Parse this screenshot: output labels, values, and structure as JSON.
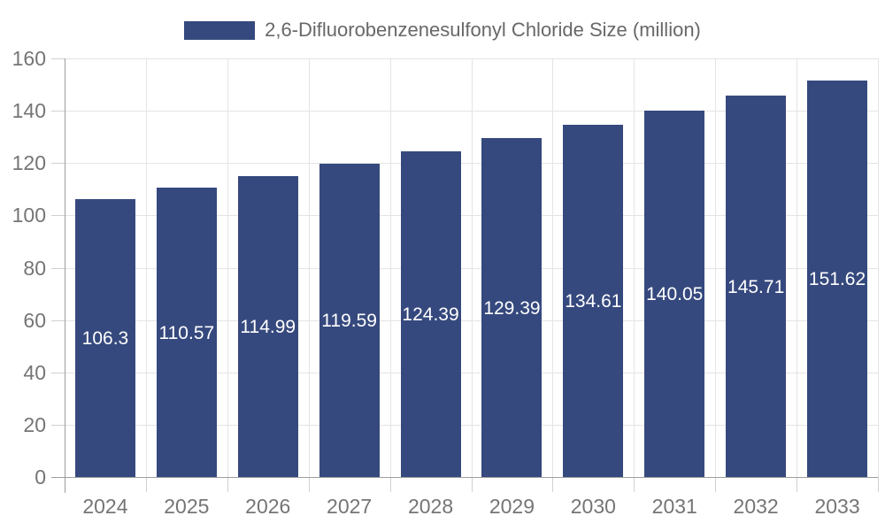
{
  "legend": {
    "label": "2,6-Difluorobenzenesulfonyl Chloride Size (million)"
  },
  "colors": {
    "bar": "#36497E",
    "grid": "#e4e4e4",
    "axis": "#9e9e9e",
    "tick": "#d0d0d0",
    "tick_text": "#757575",
    "legend_text": "#686868",
    "value_text": "#ffffff",
    "background": "#ffffff"
  },
  "chart_data": {
    "type": "bar",
    "title": "",
    "categories": [
      "2024",
      "2025",
      "2026",
      "2027",
      "2028",
      "2029",
      "2030",
      "2031",
      "2032",
      "2033"
    ],
    "series": [
      {
        "name": "2,6-Difluorobenzenesulfonyl Chloride Size (million)",
        "values": [
          106.3,
          110.57,
          114.99,
          119.59,
          124.39,
          129.39,
          134.61,
          140.05,
          145.71,
          151.62
        ]
      }
    ],
    "value_labels": [
      "106.3",
      "110.57",
      "114.99",
      "119.59",
      "124.39",
      "129.39",
      "134.61",
      "140.05",
      "145.71",
      "151.62"
    ],
    "xlabel": "",
    "ylabel": "",
    "ylim": [
      0,
      160
    ],
    "yticks": [
      0,
      20,
      40,
      60,
      80,
      100,
      120,
      140,
      160
    ],
    "grid": true,
    "legend_position": "top",
    "value_label_position": "inside-center"
  }
}
